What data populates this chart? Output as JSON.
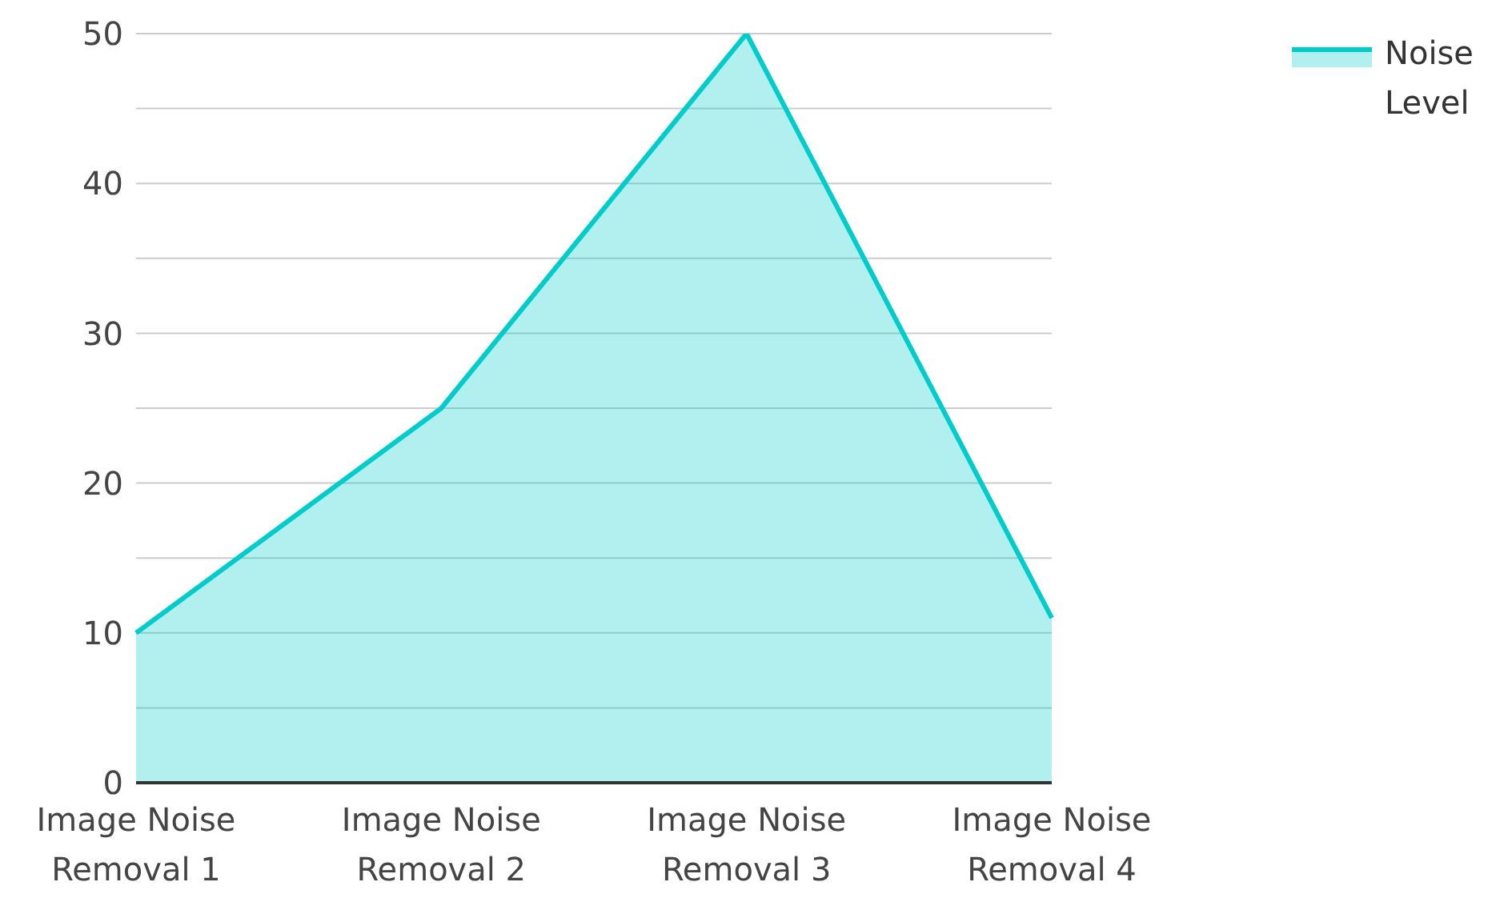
{
  "chart_data": {
    "type": "area",
    "categories": [
      "Image Noise Removal 1",
      "Image Noise Removal 2",
      "Image Noise Removal 3",
      "Image Noise Removal 4"
    ],
    "series": [
      {
        "name": "Noise Level",
        "color": "#00cccc",
        "values": [
          10,
          25,
          50,
          11
        ]
      }
    ],
    "ylim": [
      0,
      50
    ],
    "yticks": [
      0,
      {
        "value": 5,
        "label": null
      },
      10,
      {
        "value": 15,
        "label": null
      },
      20,
      {
        "value": 25,
        "label": null
      },
      30,
      {
        "value": 35,
        "label": null
      },
      40,
      {
        "value": 45,
        "label": null
      },
      50
    ],
    "grid": "y",
    "legend": "top right"
  }
}
